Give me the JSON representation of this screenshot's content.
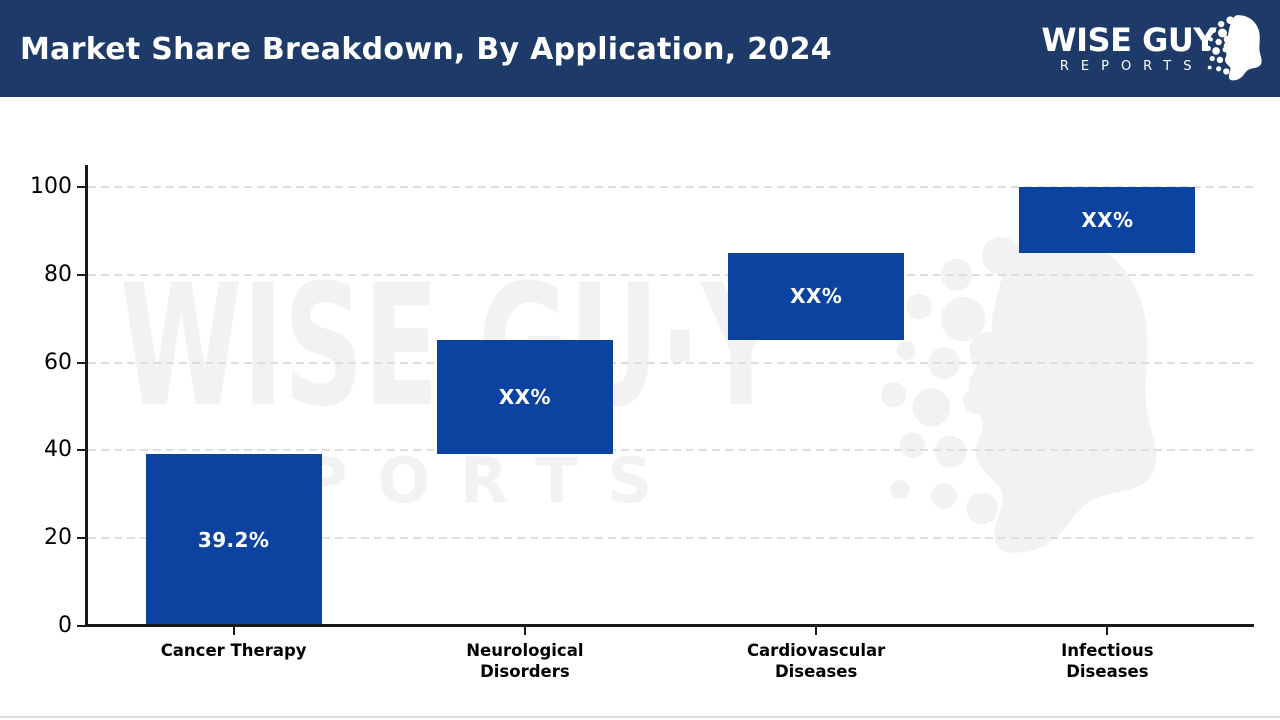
{
  "header": {
    "title": "Market Share Breakdown, By Application, 2024",
    "logo": {
      "wordmark": "WISE GUY",
      "subtext": "REPORTS",
      "icon": "face-profile-dots-icon"
    }
  },
  "watermark": {
    "line1": "WISE GU·Y",
    "line2": "REPORTS",
    "icon": "face-profile-dots-watermark",
    "color": "#f2f2f4"
  },
  "colors": {
    "header_bg": "#1e3a68",
    "bar": "#0d43a0",
    "bar_label": "#ffffff",
    "axis": "#1a1a1a",
    "grid": "#dedede",
    "footer_rule": "#dcdcdc"
  },
  "chart_data": {
    "type": "bar",
    "variant": "waterfall",
    "title": "Market Share Breakdown, By Application, 2024",
    "xlabel": "",
    "ylabel": "",
    "ylim": [
      0,
      100
    ],
    "yticks": [
      0,
      20,
      40,
      60,
      80,
      100
    ],
    "grid": "horizontal-dashed",
    "legend": "none",
    "bar_color": "#0d43a0",
    "categories": [
      "Cancer Therapy",
      "Neurological\nDisorders",
      "Cardiovascular\nDiseases",
      "Infectious\nDiseases"
    ],
    "bars": [
      {
        "category": "Cancer Therapy",
        "start": 0,
        "end": 39.2,
        "value_label": "39.2%"
      },
      {
        "category": "Neurological\nDisorders",
        "start": 39.2,
        "end": 65.2,
        "value_label": "XX%"
      },
      {
        "category": "Cardiovascular\nDiseases",
        "start": 65.2,
        "end": 85,
        "value_label": "XX%"
      },
      {
        "category": "Infectious\nDiseases",
        "start": 85,
        "end": 100,
        "value_label": "XX%"
      }
    ]
  }
}
